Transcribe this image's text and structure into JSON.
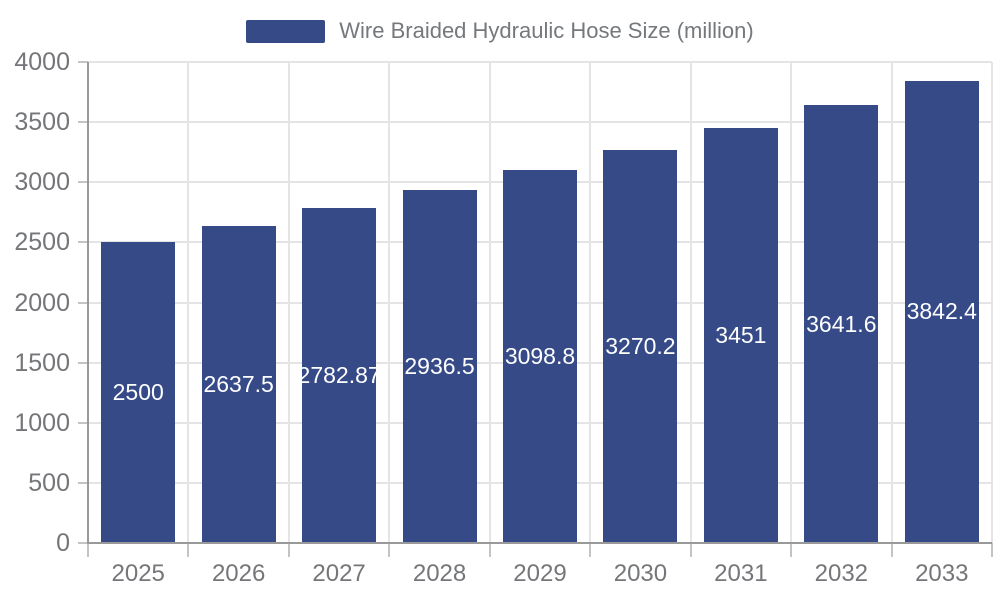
{
  "legend": {
    "label": "Wire Braided Hydraulic Hose Size (million)"
  },
  "chart_data": {
    "type": "bar",
    "title": "Wire Braided Hydraulic Hose Size (million)",
    "categories": [
      "2025",
      "2026",
      "2027",
      "2028",
      "2029",
      "2030",
      "2031",
      "2032",
      "2033"
    ],
    "values": [
      2500,
      2637.5,
      2782.87,
      2936.5,
      3098.8,
      3270.2,
      3451,
      3641.6,
      3842.4
    ],
    "value_labels": [
      "2500",
      "2637.5",
      "2782.87",
      "2936.5",
      "3098.8",
      "3270.2",
      "3451",
      "3641.6",
      "3842.4"
    ],
    "xlabel": "",
    "ylabel": "",
    "ylim": [
      0,
      4000
    ],
    "yticks": [
      0,
      500,
      1000,
      1500,
      2000,
      2500,
      3000,
      3500,
      4000
    ],
    "grid": true,
    "legend_position": "top",
    "value_label_position": "inside-center"
  },
  "colors": {
    "bar": "#354a87",
    "bar_label": "#ffffff",
    "axis_line": "#999999",
    "gridline": "#e4e4e4",
    "tick": "#c4c4c4",
    "axis_label": "#747679",
    "legend_text": "#75787c",
    "background": "#ffffff"
  }
}
